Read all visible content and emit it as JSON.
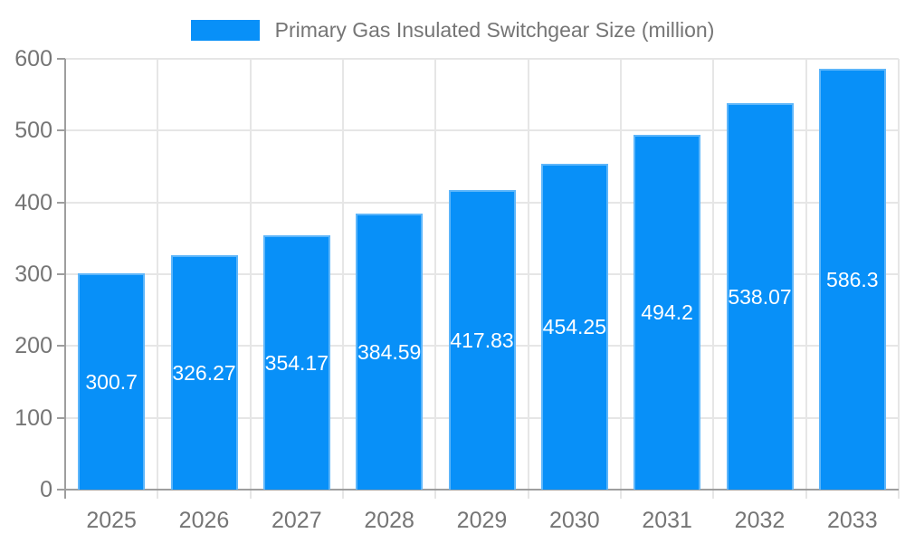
{
  "chart_data": {
    "type": "bar",
    "title": "Primary Gas Insulated Switchgear Size (million)",
    "categories": [
      "2025",
      "2026",
      "2027",
      "2028",
      "2029",
      "2030",
      "2031",
      "2032",
      "2033"
    ],
    "values": [
      300.7,
      326.27,
      354.17,
      384.59,
      417.83,
      454.25,
      494.2,
      538.07,
      586.3
    ],
    "value_labels": [
      "300.7",
      "326.27",
      "354.17",
      "384.59",
      "417.83",
      "454.25",
      "494.2",
      "538.07",
      "586.3"
    ],
    "xlabel": "",
    "ylabel": "",
    "ylim": [
      0,
      600
    ],
    "yticks": [
      0,
      100,
      200,
      300,
      400,
      500,
      600
    ],
    "grid": true,
    "legend_position": "top",
    "value_label_position": "center-of-bar",
    "colors": {
      "bar": "#0890f8",
      "bar_edge": "rgba(255,255,255,0.35)",
      "grid": "#e6e6e6",
      "axis": "#9e9e9e",
      "tick_label": "#757575",
      "value_label": "#ffffff",
      "background": "#ffffff"
    }
  }
}
